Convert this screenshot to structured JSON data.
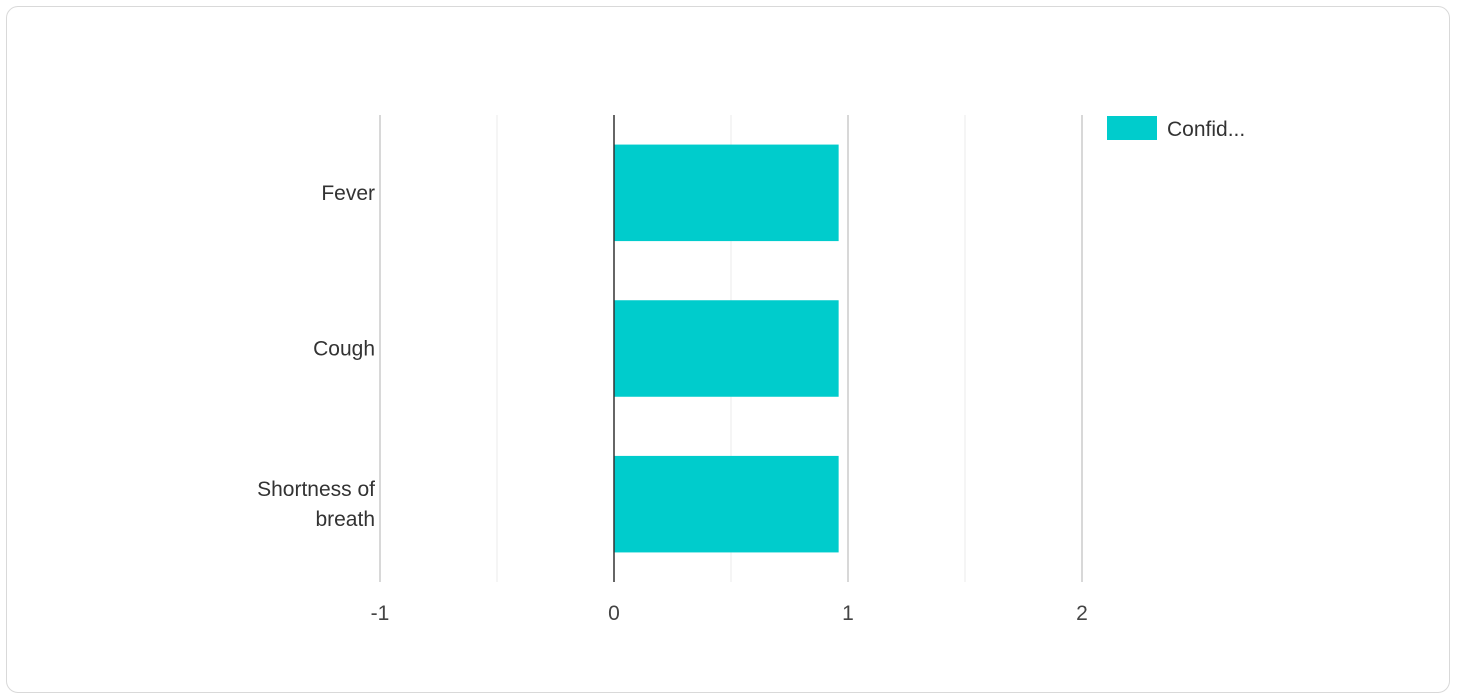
{
  "chart_data": {
    "type": "bar",
    "orientation": "horizontal",
    "categories": [
      "Fever",
      "Cough",
      "Shortness of breath"
    ],
    "series": [
      {
        "name": "Confid...",
        "values": [
          0.96,
          0.96,
          0.96
        ]
      }
    ],
    "x_ticks": [
      -1,
      0,
      1,
      2
    ],
    "xlim": [
      -1,
      2
    ],
    "grid": true,
    "legend": "top-right",
    "colors": {
      "bar": "#00cccc"
    }
  }
}
